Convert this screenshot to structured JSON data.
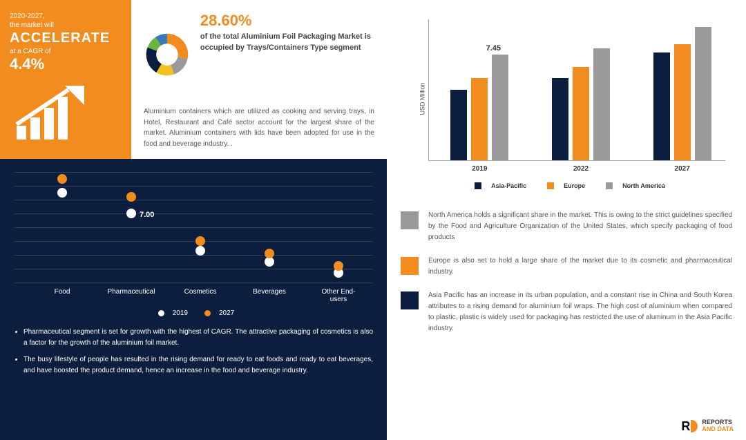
{
  "accelerate_box": {
    "period": "2020-2027,",
    "market_will": "the market will",
    "accelerate": "ACCELERATE",
    "cagr_label": "at a CAGR of",
    "cagr_value": "4.4%",
    "bg_color": "#f28c1e",
    "text_color": "#ffffff"
  },
  "donut": {
    "percent": "28.60%",
    "subtitle": "of the total Aluminium Foil Packaging Market is occupied by Trays/Containers Type segment",
    "paragraph": "Aluminium containers which are utilized as cooking and serving trays, in Hotel, Restaurant and Café sector account for the largest share of the market. Aluminium containers with lids have been adopted for use in the food and beverage industry. .",
    "slices": [
      {
        "color": "#f28c1e",
        "value": 28.6
      },
      {
        "color": "#9a9a9a",
        "value": 16
      },
      {
        "color": "#f2c31e",
        "value": 14
      },
      {
        "color": "#0b1e3d",
        "value": 22
      },
      {
        "color": "#6db33f",
        "value": 10
      },
      {
        "color": "#3b78b5",
        "value": 9.4
      }
    ],
    "inner_radius_pct": 52
  },
  "scatter": {
    "bg_color": "#0b1e3d",
    "categories": [
      "Food",
      "Pharmaceutical",
      "Cosmetics",
      "Beverages",
      "Other End-users"
    ],
    "series": [
      {
        "name": "2019",
        "color": "#ffffff",
        "values": [
          8.5,
          7.0,
          4.3,
          3.5,
          2.7
        ]
      },
      {
        "name": "2027",
        "color": "#f28c1e",
        "values": [
          9.5,
          8.2,
          5.0,
          4.1,
          3.2
        ]
      }
    ],
    "ymin": 2,
    "ymax": 10,
    "gridlines": [
      2,
      3,
      4,
      5,
      6,
      7,
      8,
      9,
      10
    ],
    "data_label": {
      "text": "7.00",
      "category_index": 1,
      "y": 7.0
    },
    "bullets": [
      "Pharmaceutical segment is set for growth with the highest of CAGR. The attractive packaging of cosmetics is also a factor for the growth of the aluminium foil market.",
      "The busy lifestyle of people has resulted in the rising demand for ready to eat foods and ready to eat beverages, and have boosted the product demand, hence an increase in the food and beverage industry."
    ]
  },
  "bar_chart": {
    "y_label": "USD Million",
    "categories": [
      "2019",
      "2022",
      "2027"
    ],
    "series": [
      {
        "name": "Asia-Pacific",
        "color": "#0b1e3d",
        "values": [
          5.0,
          5.8,
          7.6
        ]
      },
      {
        "name": "Europe",
        "color": "#f28c1e",
        "values": [
          5.8,
          6.6,
          8.2
        ]
      },
      {
        "name": "North America",
        "color": "#9a9a9a",
        "values": [
          7.45,
          7.9,
          9.4
        ]
      }
    ],
    "ymax": 10,
    "data_label": {
      "text": "7.45",
      "group_index": 0
    }
  },
  "region_desc": [
    {
      "color": "#9a9a9a",
      "text": "North America holds a significant share in the market. This is owing to the strict guidelines specified by the Food and Agriculture Organization of the United States, which specify packaging of food products"
    },
    {
      "color": "#f28c1e",
      "text": "Europe is also set to hold a large share of the market due to its cosmetic and pharmaceutical industry."
    },
    {
      "color": "#0b1e3d",
      "text": "Asia Pacific has an increase in its urban population, and a constant rise in China and South Korea attributes to a rising demand for aluminium foil wraps. The high cost of aluminium when compared to plastic, plastic is widely used for packaging has restricted the use of aluminum in the Asia Pacific industry."
    }
  ],
  "logo": {
    "line1": "REPORTS",
    "line2": "AND DATA"
  }
}
